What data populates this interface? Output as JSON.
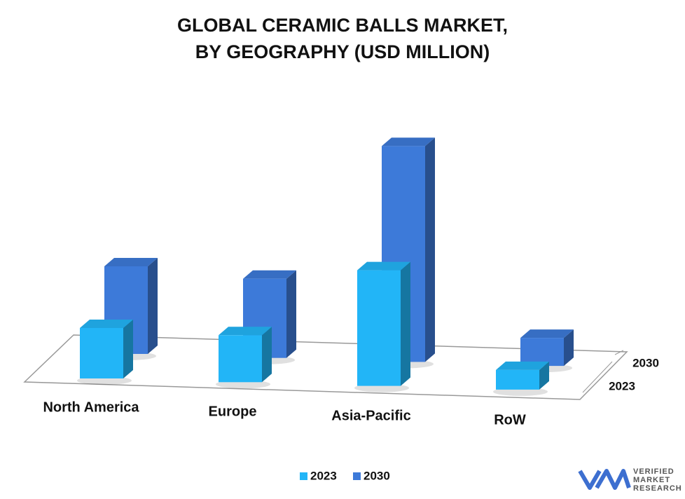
{
  "chart_data": {
    "type": "bar3d",
    "title": [
      "GLOBAL CERAMIC BALLS MARKET,",
      "BY GEOGRAPHY (USD MILLION)"
    ],
    "categories": [
      "North America",
      "Europe",
      "Asia-Pacific",
      "RoW"
    ],
    "series": [
      {
        "name": "2023",
        "color": "#22b5f7",
        "values": [
          72,
          67,
          165,
          28
        ]
      },
      {
        "name": "2030",
        "color": "#3d7ad9",
        "values": [
          125,
          113,
          308,
          40
        ]
      }
    ],
    "legend": "bottom",
    "logo": [
      "VERIFIED",
      "MARKET",
      "RESEARCH"
    ]
  }
}
